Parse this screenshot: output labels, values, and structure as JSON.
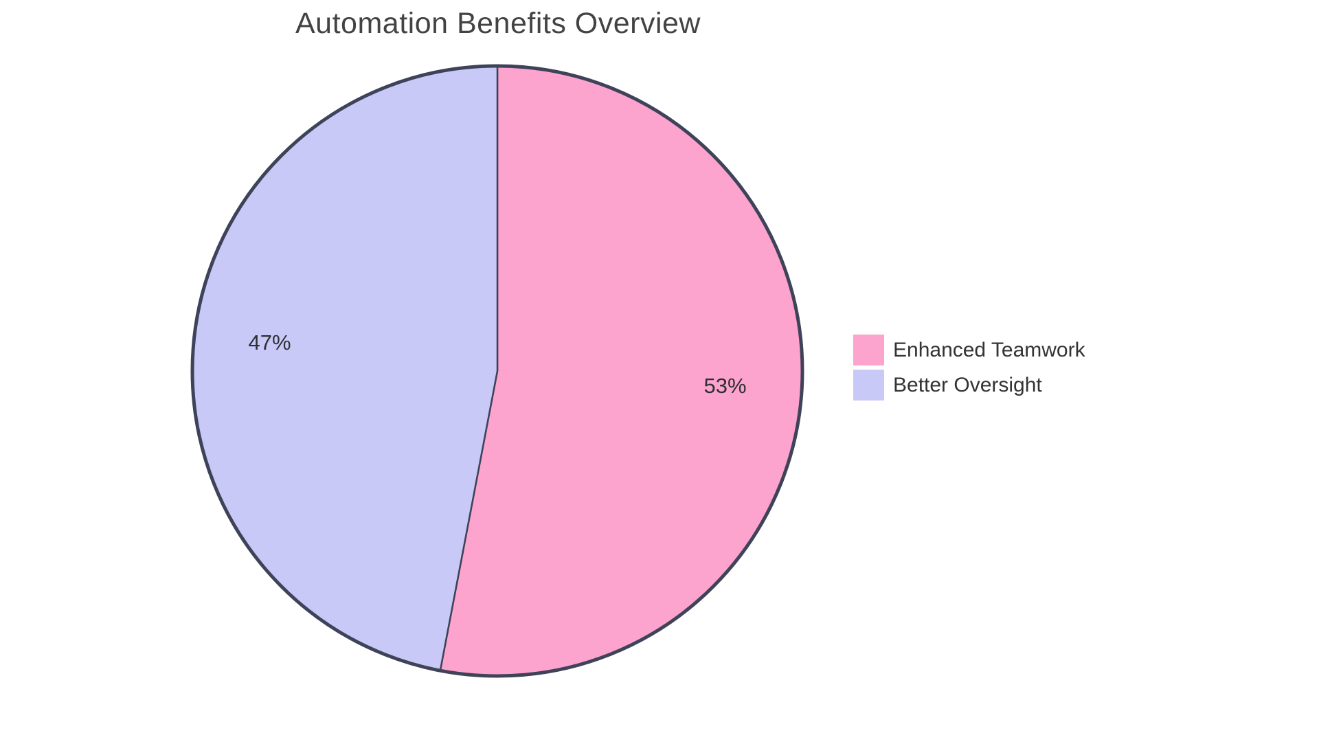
{
  "chart_data": {
    "type": "pie",
    "title": "Automation Benefits Overview",
    "start_angle": "12-oclock",
    "direction": "clockwise",
    "legend_position": "right",
    "slices": [
      {
        "label": "Enhanced Teamwork",
        "value": 53,
        "percent_label": "53%",
        "color": "#fca4cd"
      },
      {
        "label": "Better Oversight",
        "value": 47,
        "percent_label": "47%",
        "color": "#c9c9f8"
      }
    ],
    "styles": {
      "outline_color": "#3e4359",
      "outer_stroke_width": 5,
      "divider_stroke_width": 2.5,
      "title_color": "#434343",
      "label_color": "#2e2e33",
      "legend_text_color": "#333333",
      "background": "#ffffff"
    }
  }
}
